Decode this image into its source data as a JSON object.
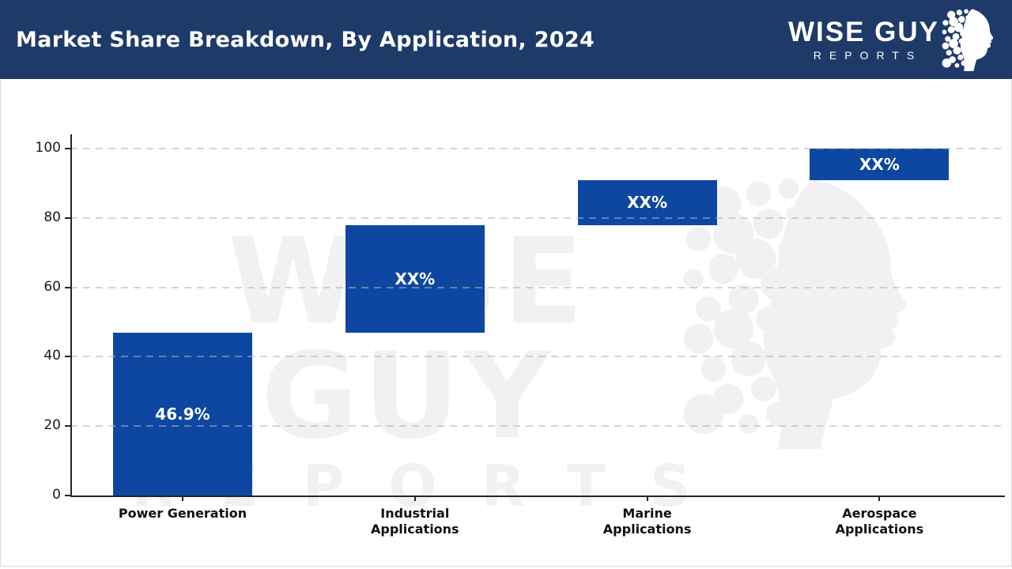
{
  "header": {
    "title": "Market Share Breakdown, By Application, 2024",
    "logo": {
      "line1": "WISE GUY",
      "line2": "REPORTS"
    }
  },
  "watermark": {
    "line1": "WISE GUY",
    "line2": "REPORTS"
  },
  "chart_data": {
    "type": "bar",
    "subtype": "waterfall-floating-bars",
    "title": "Market Share Breakdown, By Application, 2024",
    "categories": [
      "Power Generation",
      "Industrial Applications",
      "Marine Applications",
      "Aerospace Applications"
    ],
    "category_lines": [
      [
        "Power Generation"
      ],
      [
        "Industrial",
        "Applications"
      ],
      [
        "Marine",
        "Applications"
      ],
      [
        "Aerospace",
        "Applications"
      ]
    ],
    "segments": [
      {
        "category": "Power Generation",
        "start": 0,
        "end": 46.9,
        "label": "46.9%"
      },
      {
        "category": "Industrial Applications",
        "start": 46.9,
        "end": 78,
        "label": "XX%"
      },
      {
        "category": "Marine Applications",
        "start": 78,
        "end": 91,
        "label": "XX%"
      },
      {
        "category": "Aerospace Applications",
        "start": 91,
        "end": 100,
        "label": "XX%"
      }
    ],
    "ylim": [
      0,
      100
    ],
    "yticks": [
      0,
      20,
      40,
      60,
      80,
      100
    ],
    "grid": "horizontal dashed",
    "legend": "none",
    "bar_color": "#0d47a1",
    "value_label_color": "#ffffff"
  },
  "colors": {
    "header_bg": "#1e3a68",
    "bar": "#0d47a1",
    "axis": "#262626",
    "grid": "#d9d9d9",
    "watermark": "#f1f1f4",
    "card_border": "#d9d9d9"
  }
}
